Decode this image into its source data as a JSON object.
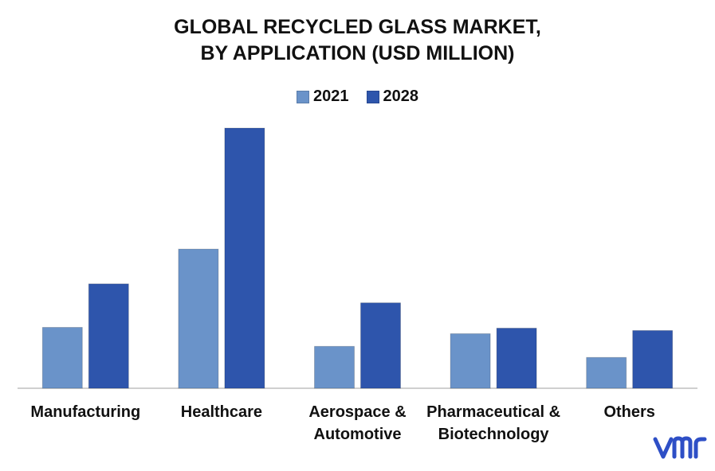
{
  "chart_data": {
    "type": "bar",
    "title_lines": [
      "GLOBAL RECYCLED GLASS MARKET,",
      "BY APPLICATION (USD MILLION)"
    ],
    "categories": [
      [
        "Manufacturing"
      ],
      [
        "Healthcare"
      ],
      [
        "Aerospace &",
        "Automotive"
      ],
      [
        "Pharmaceutical &",
        "Biotechnology"
      ],
      [
        "Others"
      ]
    ],
    "series": [
      {
        "name": "2021",
        "color": "#6A93C9",
        "values": [
          77,
          176,
          53,
          69,
          39
        ]
      },
      {
        "name": "2028",
        "color": "#2E55AC",
        "values": [
          132,
          329,
          108,
          76,
          73
        ]
      }
    ],
    "ylim": [
      0,
      340
    ],
    "legend_position": "top-center",
    "grid": false,
    "xlabel": "",
    "ylabel": ""
  },
  "logo": {
    "text": "vmr",
    "color": "#2E4FC6"
  }
}
